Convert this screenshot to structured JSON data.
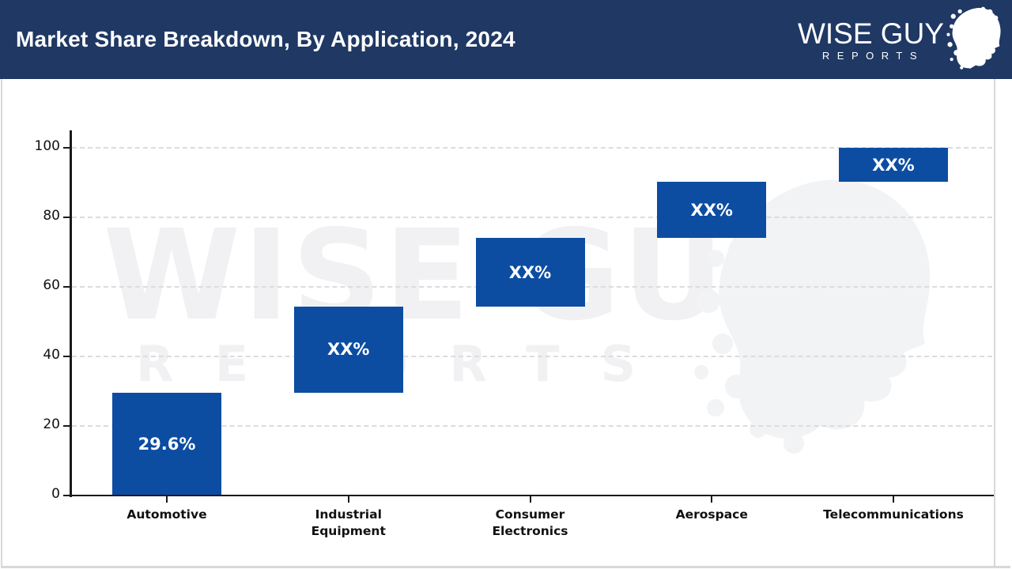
{
  "header": {
    "title": "Market Share Breakdown, By Application, 2024",
    "logo": {
      "line1": "WISE GUY",
      "line2": "REPORTS"
    }
  },
  "watermark": {
    "line1": "WISE GUY",
    "line2": "REPORTS"
  },
  "chart_data": {
    "type": "bar",
    "subtype": "waterfall",
    "title": "Market Share Breakdown, By Application, 2024",
    "categories": [
      "Automotive",
      "Industrial\nEquipment",
      "Consumer\nElectronics",
      "Aerospace",
      "Telecommunications"
    ],
    "segments": [
      {
        "category": "Automotive",
        "start": 0,
        "end": 29.6,
        "label": "29.6%"
      },
      {
        "category": "Industrial Equipment",
        "start": 29.6,
        "end": 54.3,
        "label": "XX%"
      },
      {
        "category": "Consumer Electronics",
        "start": 54.3,
        "end": 74.1,
        "label": "XX%"
      },
      {
        "category": "Aerospace",
        "start": 74.1,
        "end": 90.2,
        "label": "XX%"
      },
      {
        "category": "Telecommunications",
        "start": 90.2,
        "end": 100,
        "label": "XX%"
      }
    ],
    "yticks": [
      0,
      20,
      40,
      60,
      80,
      100
    ],
    "ylim": [
      0,
      100
    ],
    "xlabel": "",
    "ylabel": "",
    "grid": "horizontal-dashed",
    "legend": "none",
    "bar_color": "#0C4DA2"
  },
  "colors": {
    "header_bg": "#1F3864",
    "bar": "#0C4DA2",
    "grid": "#dcdcdc",
    "watermark": "#f1f1f3",
    "axis": "#1a1a1a"
  }
}
